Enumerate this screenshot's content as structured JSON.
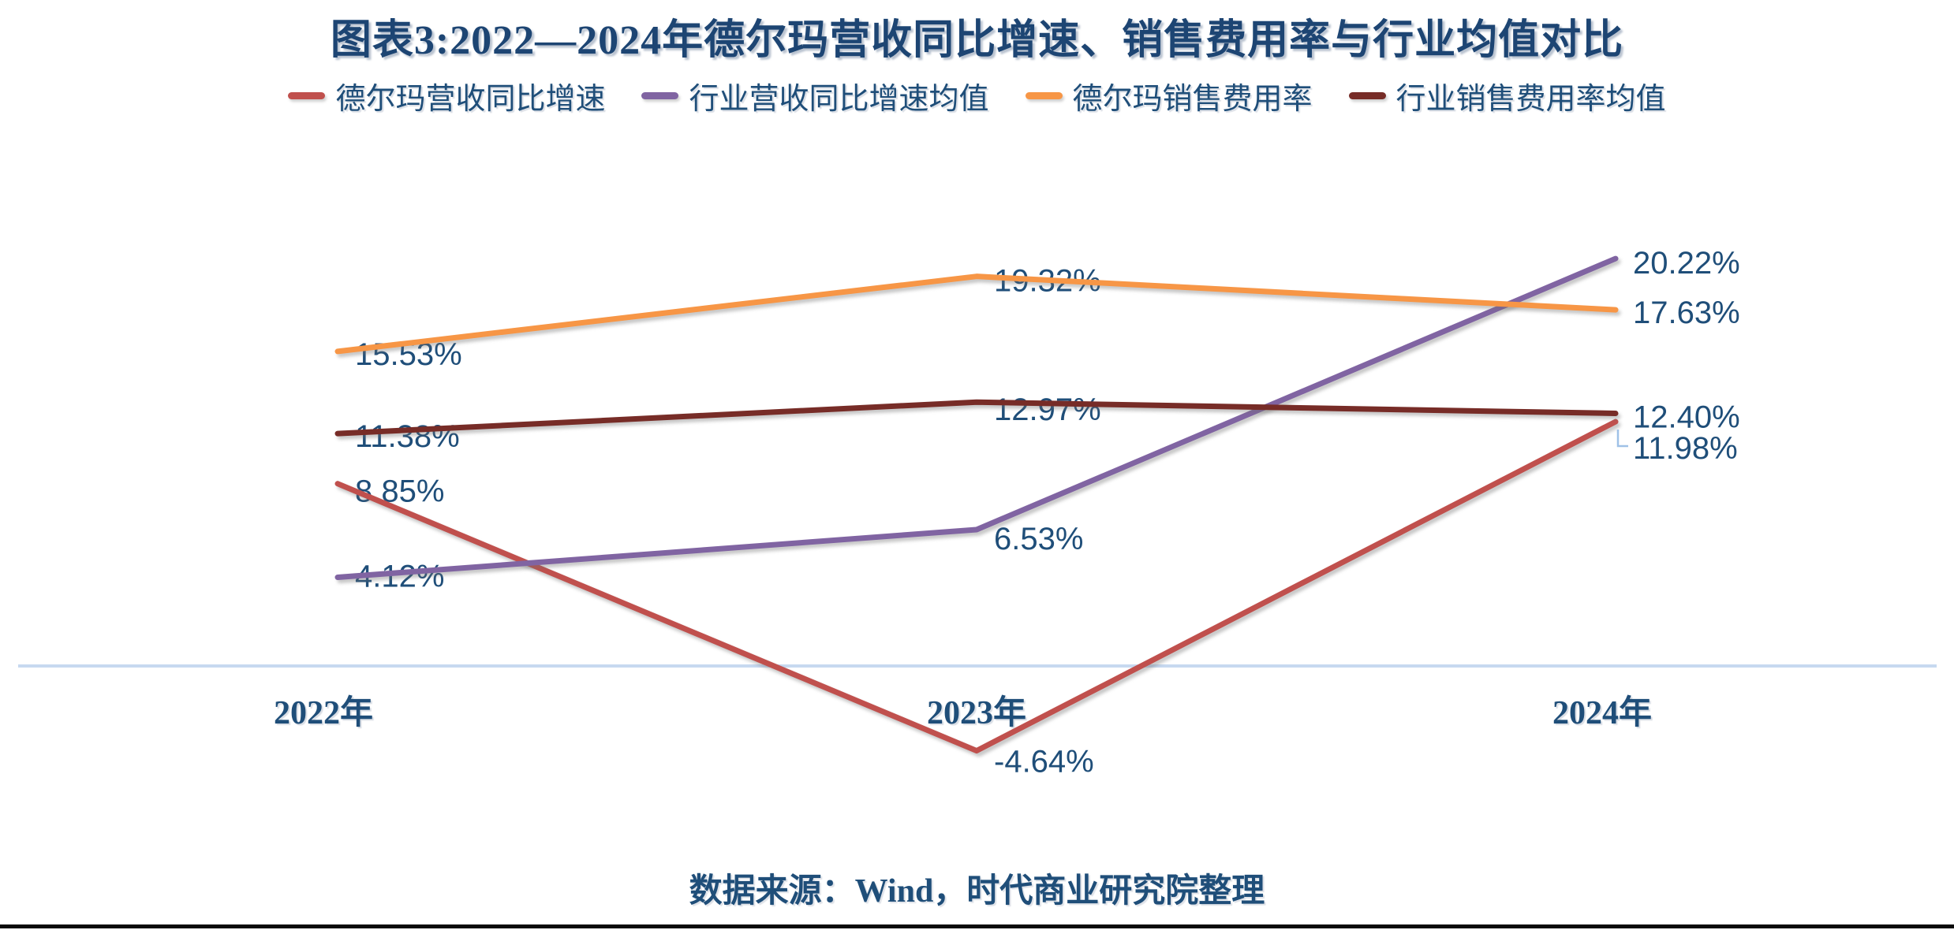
{
  "title": "图表3:2022—2024年德尔玛营收同比增速、销售费用率与行业均值对比",
  "source_note": "数据来源：Wind，时代商业研究院整理",
  "colors": {
    "title_text": "#1D4573",
    "legend_text": "#1F4E79",
    "data_label": "#1F4E79",
    "axis_label": "#1F4E79",
    "axis_line": "#C7D9F0",
    "callout": "#9FC1E7",
    "bottom_rule": "#0A0A0A",
    "background": "#FFFFFF"
  },
  "chart_data": {
    "type": "line",
    "categories": [
      "2022年",
      "2023年",
      "2024年"
    ],
    "series": [
      {
        "name": "德尔玛营收同比增速",
        "color": "#C0504D",
        "values": [
          8.85,
          -4.64,
          11.98
        ]
      },
      {
        "name": "行业营收同比增速均值",
        "color": "#8064A2",
        "values": [
          4.12,
          6.53,
          20.22
        ]
      },
      {
        "name": "德尔玛销售费用率",
        "color": "#F79646",
        "values": [
          15.53,
          19.32,
          17.63
        ]
      },
      {
        "name": "行业销售费用率均值",
        "color": "#772C27",
        "values": [
          11.38,
          12.97,
          12.4
        ]
      }
    ],
    "unit": "%",
    "value_format": "two_decimals_percent",
    "legend_position": "top",
    "grid": false,
    "baseline_at_zero": true
  }
}
